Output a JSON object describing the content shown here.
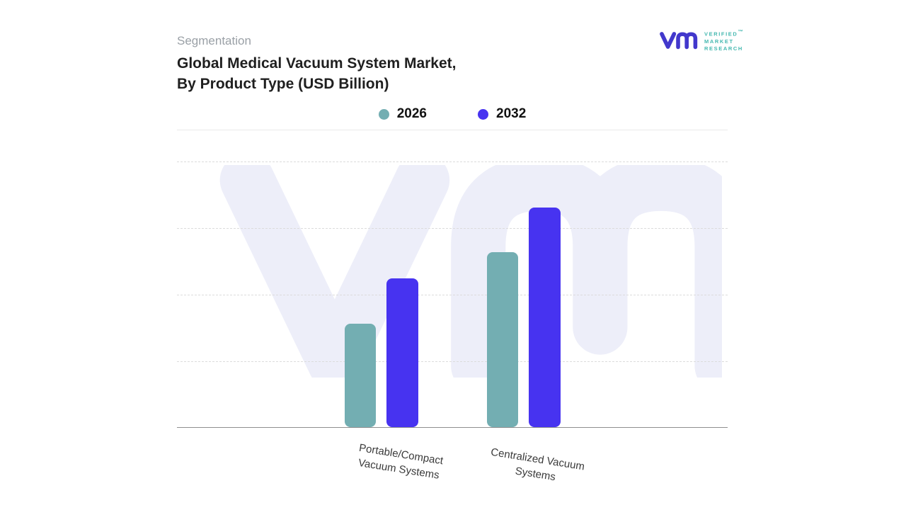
{
  "header": {
    "eyebrow": "Segmentation",
    "title_line1": "Global Medical Vacuum System Market,",
    "title_line2": "By Product Type (USD Billion)"
  },
  "logo": {
    "lines": [
      "VERIFIED",
      "MARKET",
      "RESEARCH"
    ],
    "trademark": "™",
    "glyph_color": "#4238cc",
    "text_color": "#45b8b0"
  },
  "chart_data": {
    "type": "bar",
    "title": "Global Medical Vacuum System Market, By Product Type (USD Billion)",
    "categories": [
      "Portable/Compact Vacuum Systems",
      "Centralized Vacuum Systems"
    ],
    "series": [
      {
        "name": "2026",
        "color": "#73aeb2",
        "values": [
          1.56,
          2.63
        ]
      },
      {
        "name": "2032",
        "color": "#4733f0",
        "values": [
          2.24,
          3.31
        ]
      }
    ],
    "xlabel": "",
    "ylabel": "",
    "ylim": [
      0,
      4
    ],
    "yticks_labeled": false,
    "units": "USD Billion (axis unlabeled; values estimated from gridlines)",
    "grid": "horizontal-dashed",
    "legend_position": "top",
    "watermark_color": "#edeef9"
  }
}
